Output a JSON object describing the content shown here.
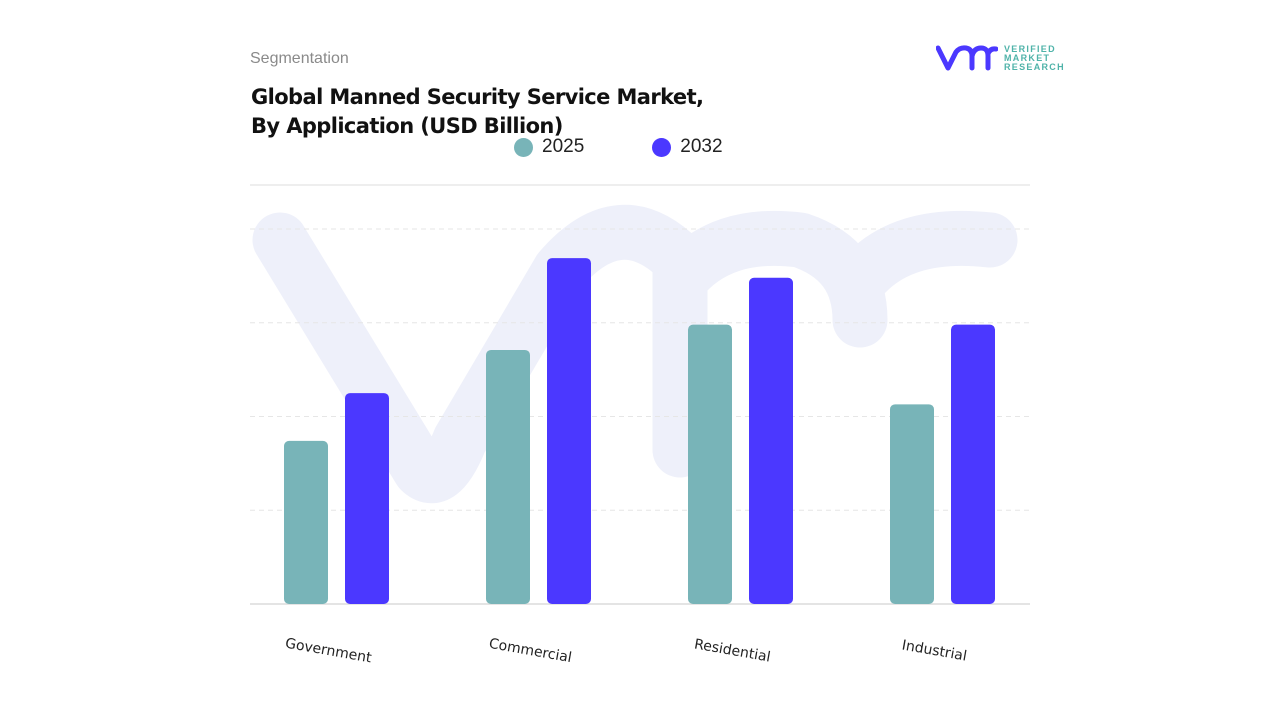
{
  "header": {
    "section": "Segmentation",
    "title_line1": "Global Manned Security Service Market,",
    "title_line2": "By Application (USD Billion)"
  },
  "logo": {
    "line1": "VERIFIED",
    "line2": "MARKET",
    "line3": "RESEARCH",
    "mark": "vm"
  },
  "chart_data": {
    "type": "bar",
    "title": "Global Manned Security Service Market, By Application (USD Billion)",
    "categories": [
      "Government",
      "Commercial",
      "Residential",
      "Industrial"
    ],
    "series": [
      {
        "name": "2025",
        "color": "#78b4b8",
        "values": [
          1.74,
          2.71,
          2.98,
          2.13
        ]
      },
      {
        "name": "2032",
        "color": "#4b38ff",
        "values": [
          2.25,
          3.69,
          3.48,
          2.98
        ]
      }
    ],
    "ylim": [
      0,
      4
    ],
    "gridlines": [
      1,
      2,
      3,
      4
    ],
    "grid": true,
    "y_tick_labels_shown": false,
    "legend_placement": "top-center",
    "xlabel": "",
    "ylabel": ""
  }
}
